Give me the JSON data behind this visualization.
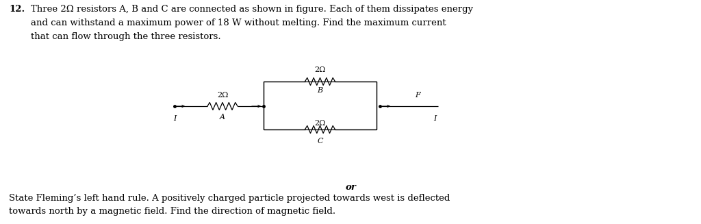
{
  "title_num": "12.",
  "main_text_line1": "Three 2Ω resistors A, B and C are connected as shown in figure. Each of them dissipates energy",
  "main_text_line2": "and can withstand a maximum power of 18 W without melting. Find the maximum current",
  "main_text_line3": "that can flow through the three resistors.",
  "or_text": "or",
  "bottom_text_line1": "State Fleming’s left hand rule. A positively charged particle projected towards west is deflected",
  "bottom_text_line2": "towards north by a magnetic field. Find the direction of magnetic field.",
  "bg_color": "#ffffff",
  "text_color": "#000000",
  "font_size_main": 9.5,
  "circuit": {
    "resistor_A_label": "2Ω",
    "resistor_A_sublabel": "A",
    "resistor_B_label": "2Ω",
    "resistor_B_sublabel": "B",
    "resistor_C_label": "2Ω",
    "resistor_C_sublabel": "C",
    "left_current_label": "I",
    "right_node_label": "F",
    "right_current_label": "I"
  }
}
